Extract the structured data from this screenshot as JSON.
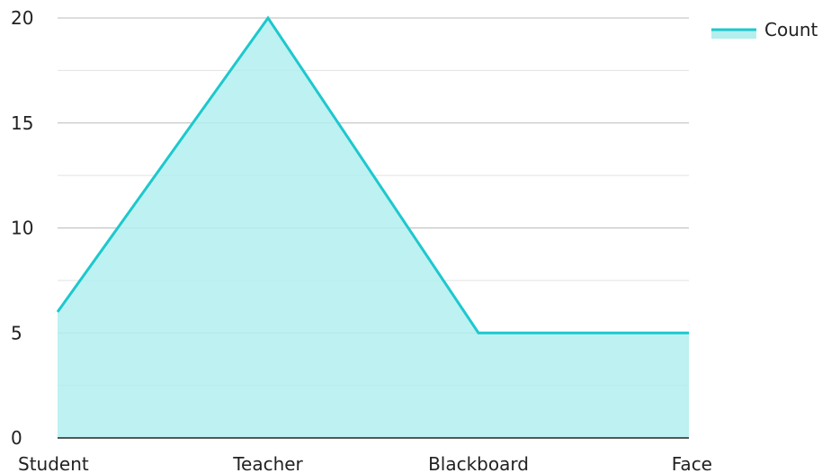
{
  "chart_data": {
    "type": "area",
    "categories": [
      "Student",
      "Teacher",
      "Blackboard",
      "Face"
    ],
    "series": [
      {
        "name": "Count",
        "values": [
          6,
          20,
          5,
          5
        ]
      }
    ],
    "ylim": [
      0,
      20
    ],
    "yticks": [
      0,
      5,
      10,
      15,
      20
    ],
    "ytick_labels": [
      "0",
      "5",
      "10",
      "15",
      "20"
    ],
    "grid": true,
    "legend": "top-right",
    "colors": {
      "line": "#1dc8cd",
      "fill": "#b3efee",
      "grid_major": "#bbbbbb",
      "grid_minor": "#e2e2e2",
      "axis": "#222222"
    }
  }
}
